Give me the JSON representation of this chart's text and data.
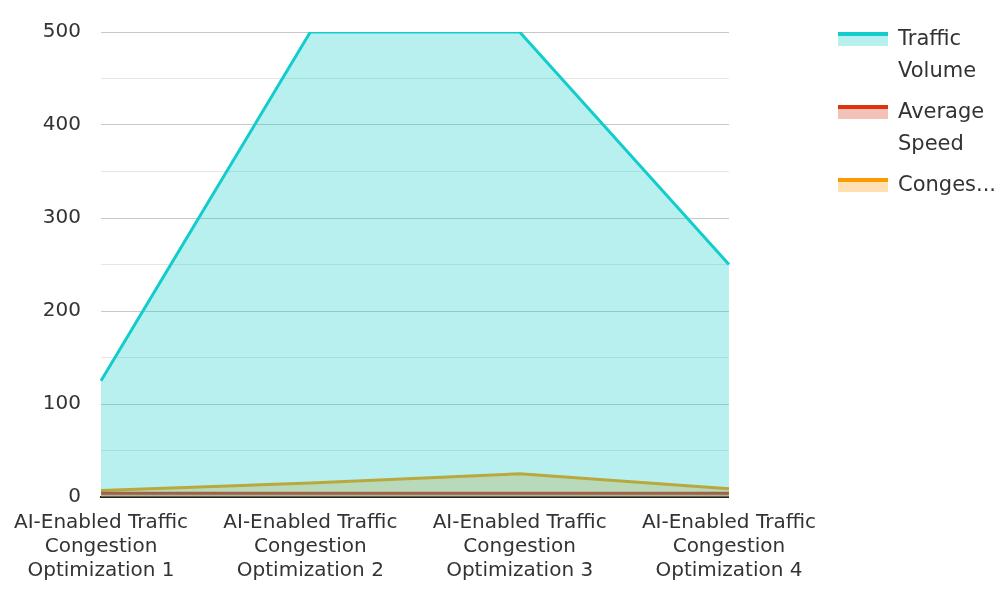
{
  "chart_data": {
    "type": "area",
    "categories": [
      "AI-Enabled Traffic Congestion Optimization 1",
      "AI-Enabled Traffic Congestion Optimization 2",
      "AI-Enabled Traffic Congestion Optimization 3",
      "AI-Enabled Traffic Congestion Optimization 4"
    ],
    "series": [
      {
        "name": "Traffic Volume",
        "color": "#13cccc",
        "values": [
          125,
          500,
          500,
          250
        ]
      },
      {
        "name": "Average Speed",
        "color": "#dd3311",
        "values": [
          4,
          4,
          4,
          4
        ]
      },
      {
        "name": "Conges...",
        "color": "#ff9900",
        "values": [
          7,
          15,
          25,
          9
        ]
      }
    ],
    "ylim": [
      0,
      500
    ],
    "yticks": [
      0,
      {
        "value": 50,
        "label": null
      },
      100,
      {
        "value": 150,
        "label": null
      },
      200,
      {
        "value": 250,
        "label": null
      },
      300,
      {
        "value": 350,
        "label": null
      },
      400,
      {
        "value": 450,
        "label": null
      },
      500
    ],
    "grid": "y",
    "legend": "top right",
    "marker": "none"
  }
}
